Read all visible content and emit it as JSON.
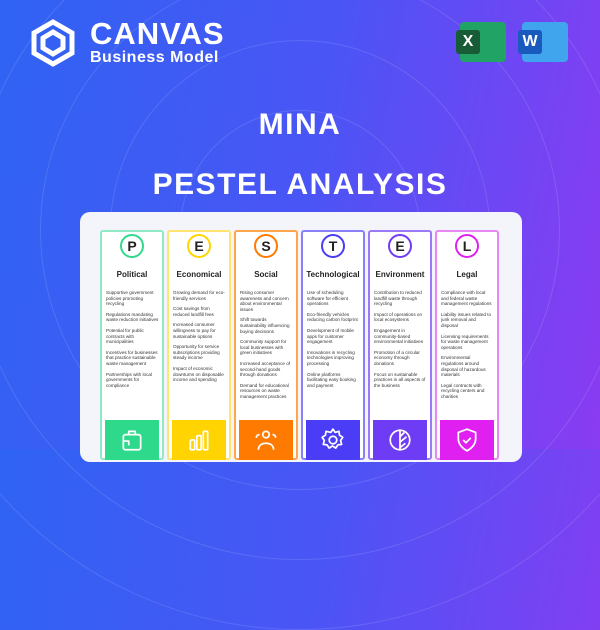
{
  "brand": {
    "name": "CANVAS",
    "sub": "Business Model"
  },
  "apps": [
    {
      "name": "excel-icon",
      "letter": "X",
      "color": "#1d7a45"
    },
    {
      "name": "word-icon",
      "letter": "W",
      "color": "#1f5bc6"
    }
  ],
  "title": "MINA",
  "subtitle": "PESTEL ANALYSIS",
  "columns": [
    {
      "letter": "P",
      "title": "Political",
      "color": "#2fd98c",
      "border": "#8fe9c4",
      "icon": "briefcase-icon",
      "items": [
        "Supportive government policies promoting recycling",
        "Regulations mandating waste reduction initiatives",
        "Potential for public contracts with municipalities",
        "Incentives for businesses that practice sustainable waste management",
        "Partnerships with local governments for compliance"
      ]
    },
    {
      "letter": "E",
      "title": "Economical",
      "color": "#ffd400",
      "border": "#ffe470",
      "icon": "bar-chart-icon",
      "items": [
        "Growing demand for eco-friendly services",
        "Cost savings from reduced landfill fees",
        "Increased consumer willingness to pay for sustainable options",
        "Opportunity for service subscriptions providing steady income",
        "Impact of economic downturns on disposable income and spending"
      ]
    },
    {
      "letter": "S",
      "title": "Social",
      "color": "#ff7a00",
      "border": "#ffa54d",
      "icon": "users-icon",
      "items": [
        "Rising consumer awareness and concern about environmental issues",
        "Shift towards sustainability influencing buying decisions",
        "Community support for local businesses with green initiatives",
        "Increased acceptance of second-hand goods through donations",
        "Demand for educational resources on waste management practices"
      ]
    },
    {
      "letter": "T",
      "title": "Technological",
      "color": "#4b3cf5",
      "border": "#8b80f7",
      "icon": "gear-icon",
      "items": [
        "Use of scheduling software for efficient operations",
        "Eco-friendly vehicles reducing carbon footprint",
        "Development of mobile apps for customer engagement",
        "Innovations in recycling technologies improving processing",
        "Online platforms facilitating easy booking and payment"
      ]
    },
    {
      "letter": "E",
      "title": "Environment",
      "color": "#6f3cf5",
      "border": "#9a7af7",
      "icon": "leaf-icon",
      "items": [
        "Contribution to reduced landfill waste through recycling",
        "Impact of operations on local ecosystems",
        "Engagement in community-based environmental initiatives",
        "Promotion of a circular economy through donations",
        "Focus on sustainable practices in all aspects of the business"
      ]
    },
    {
      "letter": "L",
      "title": "Legal",
      "color": "#e020f0",
      "border": "#e887f3",
      "icon": "shield-icon",
      "items": [
        "Compliance with local and federal waste management regulations",
        "Liability issues related to junk removal and disposal",
        "Licensing requirements for waste management operations",
        "Environmental regulations around disposal of hazardous materials",
        "Legal contracts with recycling centers and charities"
      ]
    }
  ]
}
